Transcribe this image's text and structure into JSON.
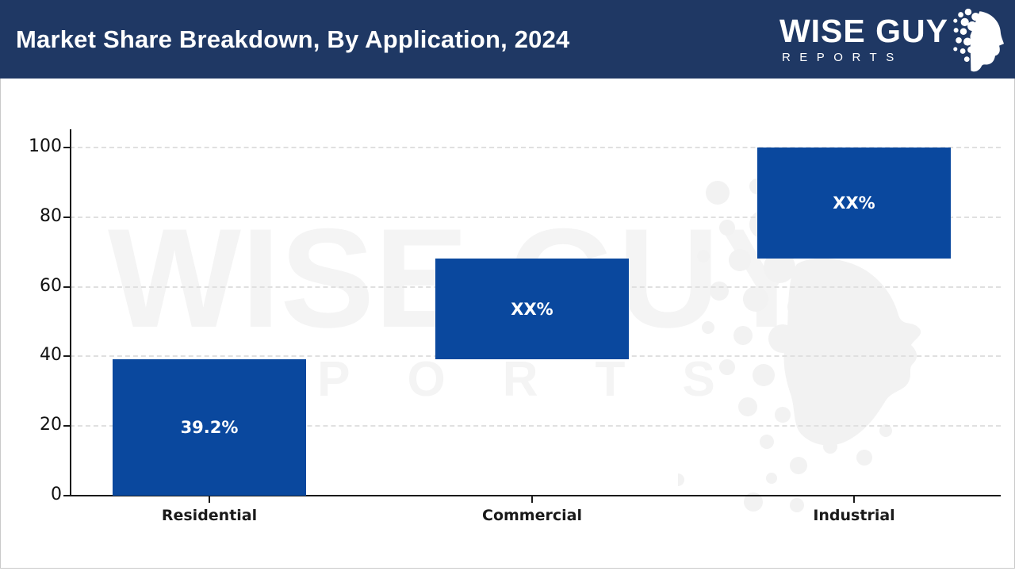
{
  "header": {
    "title": "Market Share Breakdown, By Application, 2024",
    "bg_color": "#1f3864",
    "logo": {
      "wordmark": "WISE GUY",
      "subtext": "REPORTS"
    }
  },
  "watermark": {
    "line1": "WISE GUY",
    "line2": "REPORTS"
  },
  "chart_data": {
    "type": "bar",
    "subtype": "floating-waterfall",
    "title": "Market Share Breakdown, By Application, 2024",
    "categories": [
      "Residential",
      "Commercial",
      "Industrial"
    ],
    "bars": [
      {
        "category": "Residential",
        "start": 0,
        "end": 39.2,
        "value_label": "39.2%"
      },
      {
        "category": "Commercial",
        "start": 39.2,
        "end": 68,
        "value_label": "XX%"
      },
      {
        "category": "Industrial",
        "start": 68,
        "end": 100,
        "value_label": "XX%"
      }
    ],
    "yticks": [
      0,
      20,
      40,
      60,
      80,
      100
    ],
    "ylim": [
      0,
      106
    ],
    "xlabel": "",
    "ylabel": "",
    "grid": "horizontal-dashed",
    "legend": "none",
    "bar_color": "#0a489e",
    "value_label_color": "#ffffff",
    "axis_color": "#1a1a1a"
  }
}
